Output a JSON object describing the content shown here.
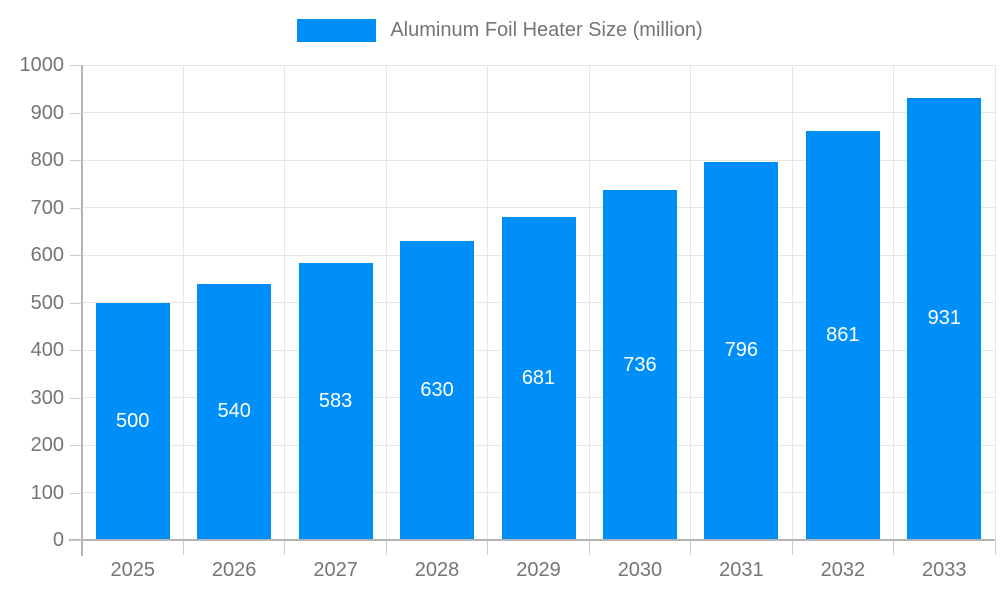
{
  "legend": {
    "label": "Aluminum Foil Heater Size (million)"
  },
  "chart_data": {
    "type": "bar",
    "title": "",
    "series_name": "Aluminum Foil Heater Size (million)",
    "categories": [
      "2025",
      "2026",
      "2027",
      "2028",
      "2029",
      "2030",
      "2031",
      "2032",
      "2033"
    ],
    "values": [
      500,
      540,
      583,
      630,
      681,
      736,
      796,
      861,
      931
    ],
    "value_labels": [
      "500",
      "540",
      "583",
      "630",
      "681",
      "736",
      "796",
      "861",
      "931"
    ],
    "xlabel": "",
    "ylabel": "",
    "ylim": [
      0,
      1000
    ],
    "yticks": [
      0,
      100,
      200,
      300,
      400,
      500,
      600,
      700,
      800,
      900,
      1000
    ],
    "grid": true,
    "legend_position": "top",
    "value_labels_inside_bars": true
  },
  "colors": {
    "bar": "#008ff8",
    "gridline": "#e6e6e6",
    "axis_line": "#b3b3b3",
    "tick": "#cccccc",
    "axis_text": "#757575",
    "value_text": "#ffffff",
    "background": "#ffffff"
  }
}
